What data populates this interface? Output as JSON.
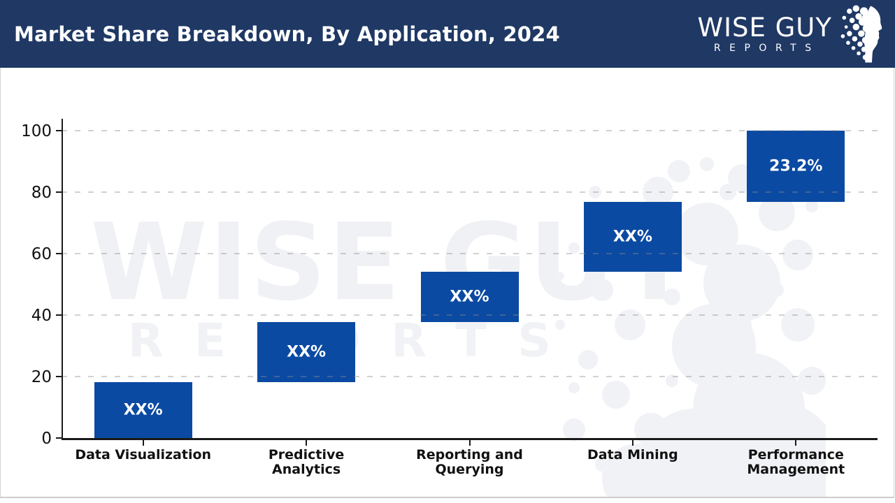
{
  "header": {
    "title": "Market Share Breakdown, By Application, 2024",
    "logo": {
      "line1": "WISE GUY",
      "line2": "REPORTS"
    }
  },
  "watermark": {
    "line1": "WISE GUY",
    "line2": "REPORTS"
  },
  "colors": {
    "header_bg": "#1f3864",
    "bar": "#0b4aa2",
    "bar_label": "#ffffff",
    "axis": "#1a1a1a",
    "grid": "#b0b0b0",
    "watermark": "#f0f1f4",
    "frame_border": "#cccccc"
  },
  "chart_data": {
    "type": "bar",
    "subtype": "waterfall",
    "title": "Market Share Breakdown, By Application, 2024",
    "xlabel": "",
    "ylabel": "",
    "ylim": [
      0,
      100
    ],
    "y_ticks": [
      0,
      20,
      40,
      60,
      80,
      100
    ],
    "grid": "dashed-horizontal",
    "legend": "none",
    "categories": [
      "Data Visualization",
      "Predictive Analytics",
      "Reporting and Querying",
      "Data Mining",
      "Performance Management"
    ],
    "category_lines": [
      [
        "Data Visualization"
      ],
      [
        "Predictive",
        "Analytics"
      ],
      [
        "Reporting and",
        "Querying"
      ],
      [
        "Data Mining"
      ],
      [
        "Performance",
        "Management"
      ]
    ],
    "segments": [
      {
        "category": "Data Visualization",
        "start": 0,
        "end": 18.2,
        "label": "XX%"
      },
      {
        "category": "Predictive Analytics",
        "start": 18.2,
        "end": 37.7,
        "label": "XX%"
      },
      {
        "category": "Reporting and Querying",
        "start": 37.7,
        "end": 54.1,
        "label": "XX%"
      },
      {
        "category": "Data Mining",
        "start": 54.1,
        "end": 76.8,
        "label": "XX%"
      },
      {
        "category": "Performance Management",
        "start": 76.8,
        "end": 100,
        "label": "23.2%"
      }
    ]
  }
}
